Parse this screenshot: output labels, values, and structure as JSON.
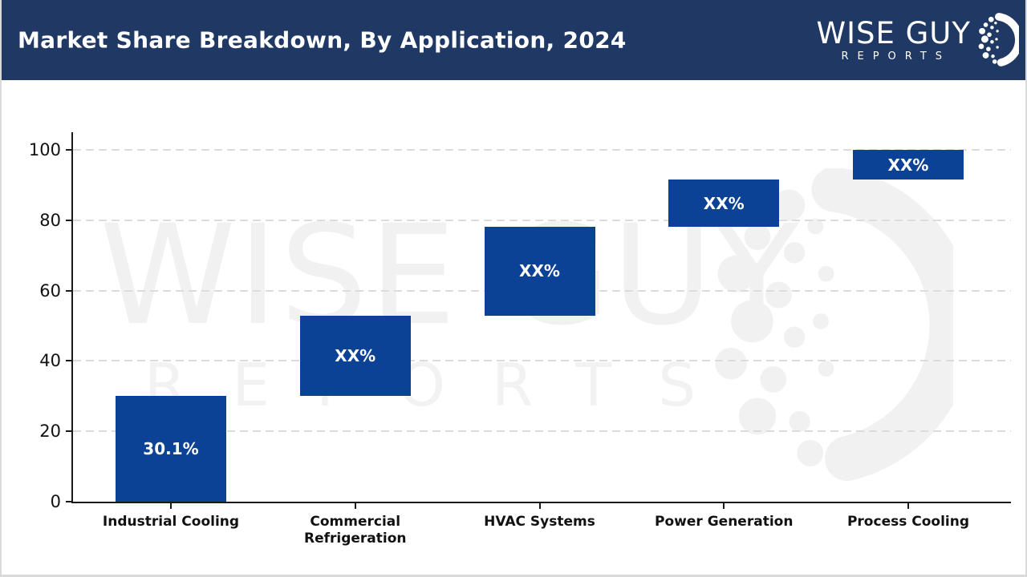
{
  "header": {
    "title": "Market Share Breakdown, By Application, 2024",
    "bg_color": "#203864",
    "logo": {
      "line1": "WISE GUY",
      "line2": "REPORTS",
      "icon": "head-profile-dots-icon",
      "color": "#ffffff"
    }
  },
  "watermark": {
    "line1": "WISE GUY",
    "line2": "REPORTS",
    "icon": "head-profile-dots-icon",
    "color": "#f1f1f1"
  },
  "chart_data": {
    "type": "bar",
    "subtype": "waterfall",
    "title": "Market Share Breakdown, By Application, 2024",
    "xlabel": "",
    "ylabel": "",
    "categories": [
      "Industrial Cooling",
      "Commercial Refrigeration",
      "HVAC Systems",
      "Power Generation",
      "Process Cooling"
    ],
    "segments": [
      {
        "category": "Industrial Cooling",
        "start": 0,
        "end": 30.1,
        "label": "30.1%"
      },
      {
        "category": "Commercial Refrigeration",
        "start": 30.1,
        "end": 52.9,
        "label": "XX%"
      },
      {
        "category": "HVAC Systems",
        "start": 52.9,
        "end": 78.2,
        "label": "XX%"
      },
      {
        "category": "Power Generation",
        "start": 78.2,
        "end": 91.5,
        "label": "XX%"
      },
      {
        "category": "Process Cooling",
        "start": 91.5,
        "end": 100,
        "label": "XX%"
      }
    ],
    "yticks": [
      0,
      20,
      40,
      60,
      80,
      100
    ],
    "ylim": [
      0,
      104
    ],
    "grid": "horizontal-dashed",
    "legend": "none",
    "colors": {
      "bar": "#0C4296",
      "bar_label": "#ffffff",
      "axis": "#1a1a1a",
      "gridline": "#dcdcdc",
      "tick_label": "#111111"
    }
  }
}
